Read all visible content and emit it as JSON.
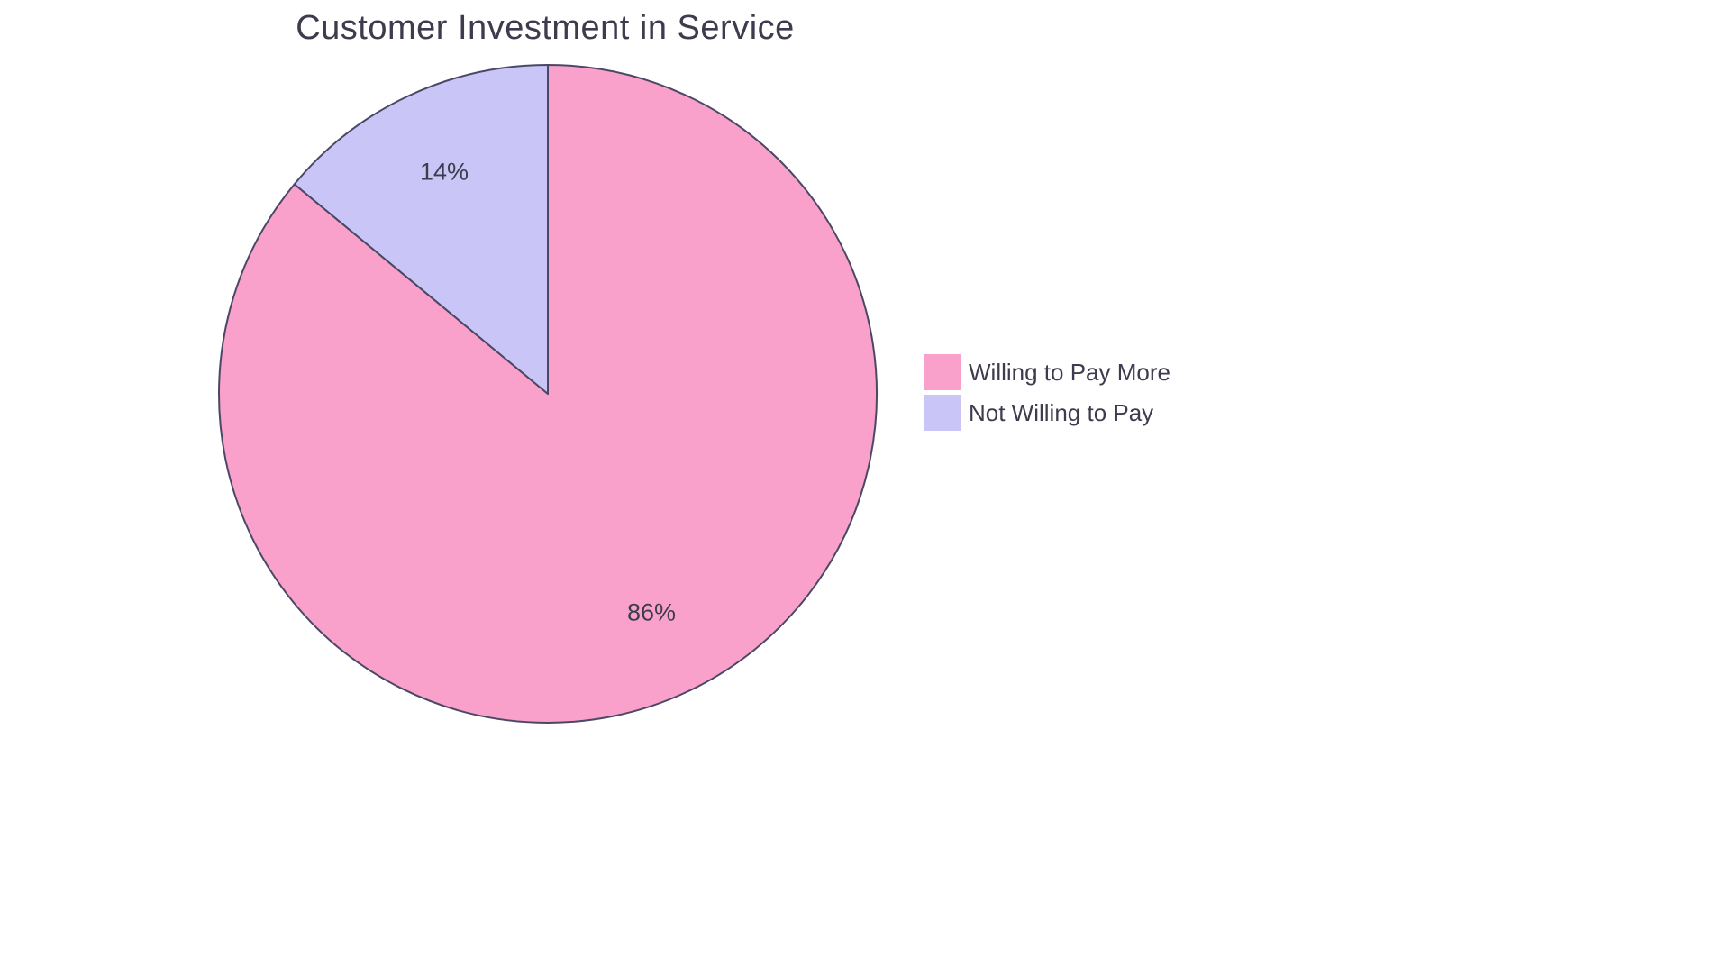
{
  "title": "Customer Investment in Service",
  "chart_data": {
    "type": "pie",
    "title": "Customer Investment in Service",
    "labels": [
      "Willing to Pay More",
      "Not Willing to Pay"
    ],
    "values": [
      86,
      14
    ],
    "value_labels": [
      "86%",
      "14%"
    ],
    "colors": [
      "#F9A1CB",
      "#C9C5F6"
    ],
    "stroke_color": "#4A4866",
    "text_color": "#3C3C4E",
    "background": "#FFFFFF",
    "legend_position": "right",
    "start_angle_deg": 0,
    "direction": "clockwise"
  }
}
